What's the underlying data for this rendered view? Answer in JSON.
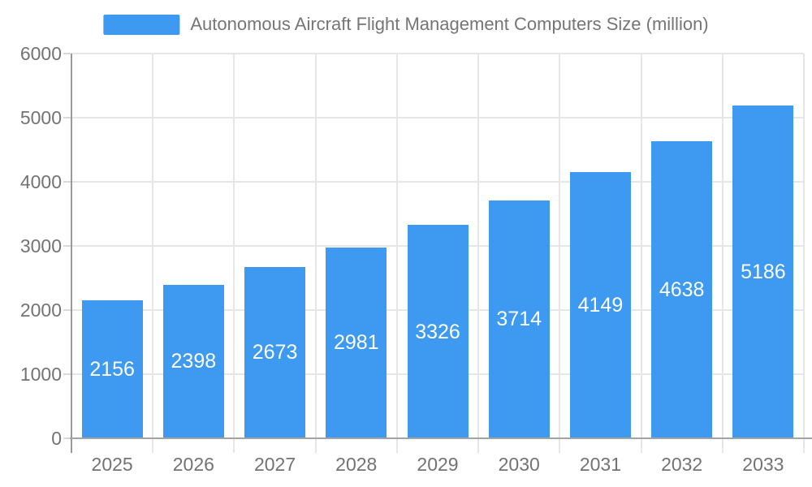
{
  "chart_data": {
    "type": "bar",
    "title": "Autonomous Aircraft Flight Management Computers Size (million)",
    "legend": [
      "Autonomous Aircraft Flight Management Computers Size (million)"
    ],
    "legend_position": "top",
    "categories": [
      "2025",
      "2026",
      "2027",
      "2028",
      "2029",
      "2030",
      "2031",
      "2032",
      "2033"
    ],
    "series": [
      {
        "name": "Autonomous Aircraft Flight Management Computers Size (million)",
        "values": [
          2156,
          2398,
          2673,
          2981,
          3326,
          3714,
          4149,
          4638,
          5186
        ]
      }
    ],
    "xlabel": "",
    "ylabel": "",
    "ylim": [
      0,
      6000
    ],
    "ytick_step": 1000,
    "ytick_labels": [
      "0",
      "1000",
      "2000",
      "3000",
      "4000",
      "5000",
      "6000"
    ],
    "grid": true,
    "value_labels_shown": true,
    "colors": {
      "bar": "#3D9AF0",
      "value_label": "#FFFFFF",
      "axis_text": "#737373",
      "legend_text": "#757575",
      "gridline": "#E6E6E6",
      "axis_line": "#999999"
    }
  }
}
